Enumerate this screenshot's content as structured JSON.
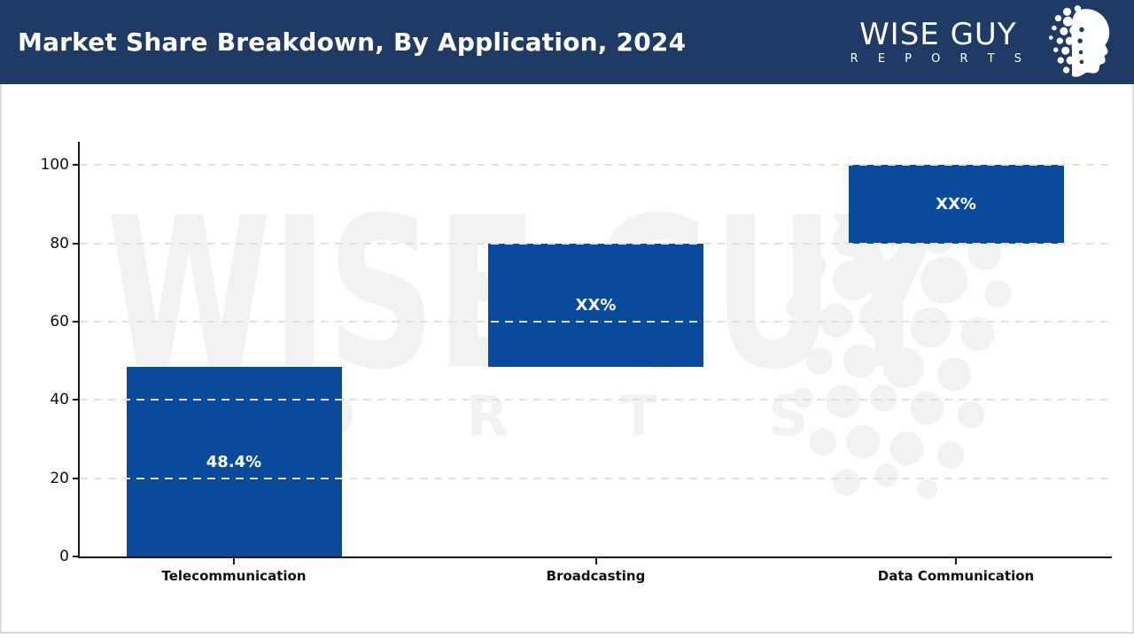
{
  "header": {
    "title": "Market Share Breakdown, By Application, 2024",
    "bg_color": "#203a66",
    "logo": {
      "line1": "WISE GUY",
      "line2": "R E P O R T S"
    }
  },
  "watermark": {
    "line1": "WISE GUY",
    "line2": "P O R T S"
  },
  "chart_data": {
    "type": "bar",
    "subtype": "waterfall-stacked-breakdown",
    "title": "Market Share Breakdown, By Application, 2024",
    "categories": [
      "Telecommunication",
      "Broadcasting",
      "Data Communication"
    ],
    "segments": [
      {
        "category": "Telecommunication",
        "start": 0,
        "end": 48.4,
        "label": "48.4%"
      },
      {
        "category": "Broadcasting",
        "start": 48.4,
        "end": 80,
        "label": "XX%"
      },
      {
        "category": "Data Communication",
        "start": 80,
        "end": 100,
        "label": "XX%"
      }
    ],
    "values_visible": [
      "48.4%",
      "XX%",
      "XX%"
    ],
    "bar_color": "#0a4a9c",
    "yticks": [
      0,
      20,
      40,
      60,
      80,
      100
    ],
    "ylim": [
      0,
      106
    ],
    "xlabel": "",
    "ylabel": "",
    "grid": "horizontal-dashed",
    "grid_color": "#e2e2e2",
    "legend": "none"
  }
}
